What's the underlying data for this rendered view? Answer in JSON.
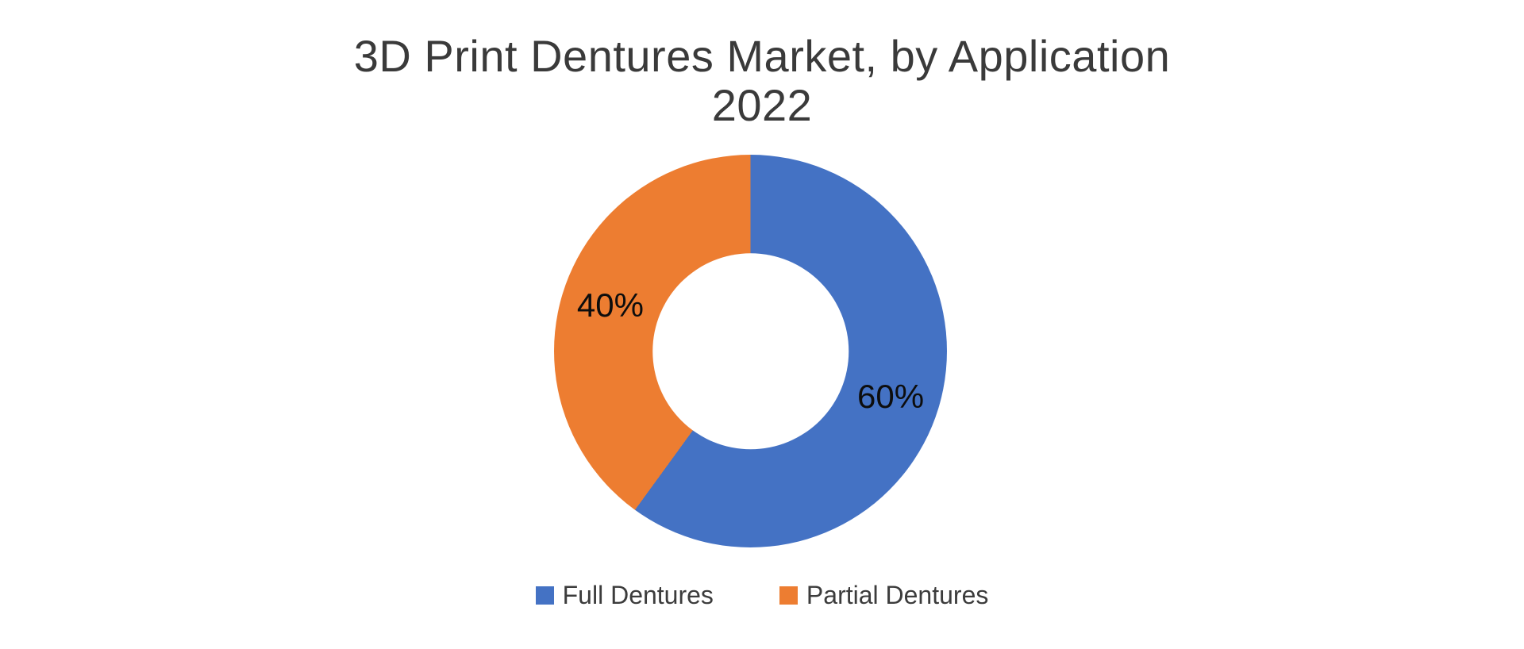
{
  "header": {
    "title_lines": [
      "3D Print Dentures Market, by Application",
      "2022"
    ]
  },
  "chart_data": {
    "type": "pie",
    "subtype": "donut",
    "title": "3D Print Dentures Market, by Application 2022",
    "categories": [
      "Full Dentures",
      "Partial Dentures"
    ],
    "values": [
      60,
      40
    ],
    "data_labels": [
      "60%",
      "40%"
    ],
    "colors": [
      "#4472C4",
      "#ED7D31"
    ],
    "start_angle_deg": 0,
    "direction": "clockwise",
    "inner_radius_ratio": 0.5,
    "legend_position": "bottom",
    "background_color": "#FFFFFF",
    "data_label_color": "#0D0D0D",
    "title_color": "#3A3A3A",
    "legend_text_color": "#3C3C3C",
    "grid": false
  },
  "legend": {
    "items": [
      {
        "label": "Full Dentures",
        "color": "#4472C4"
      },
      {
        "label": "Partial Dentures",
        "color": "#ED7D31"
      }
    ]
  }
}
